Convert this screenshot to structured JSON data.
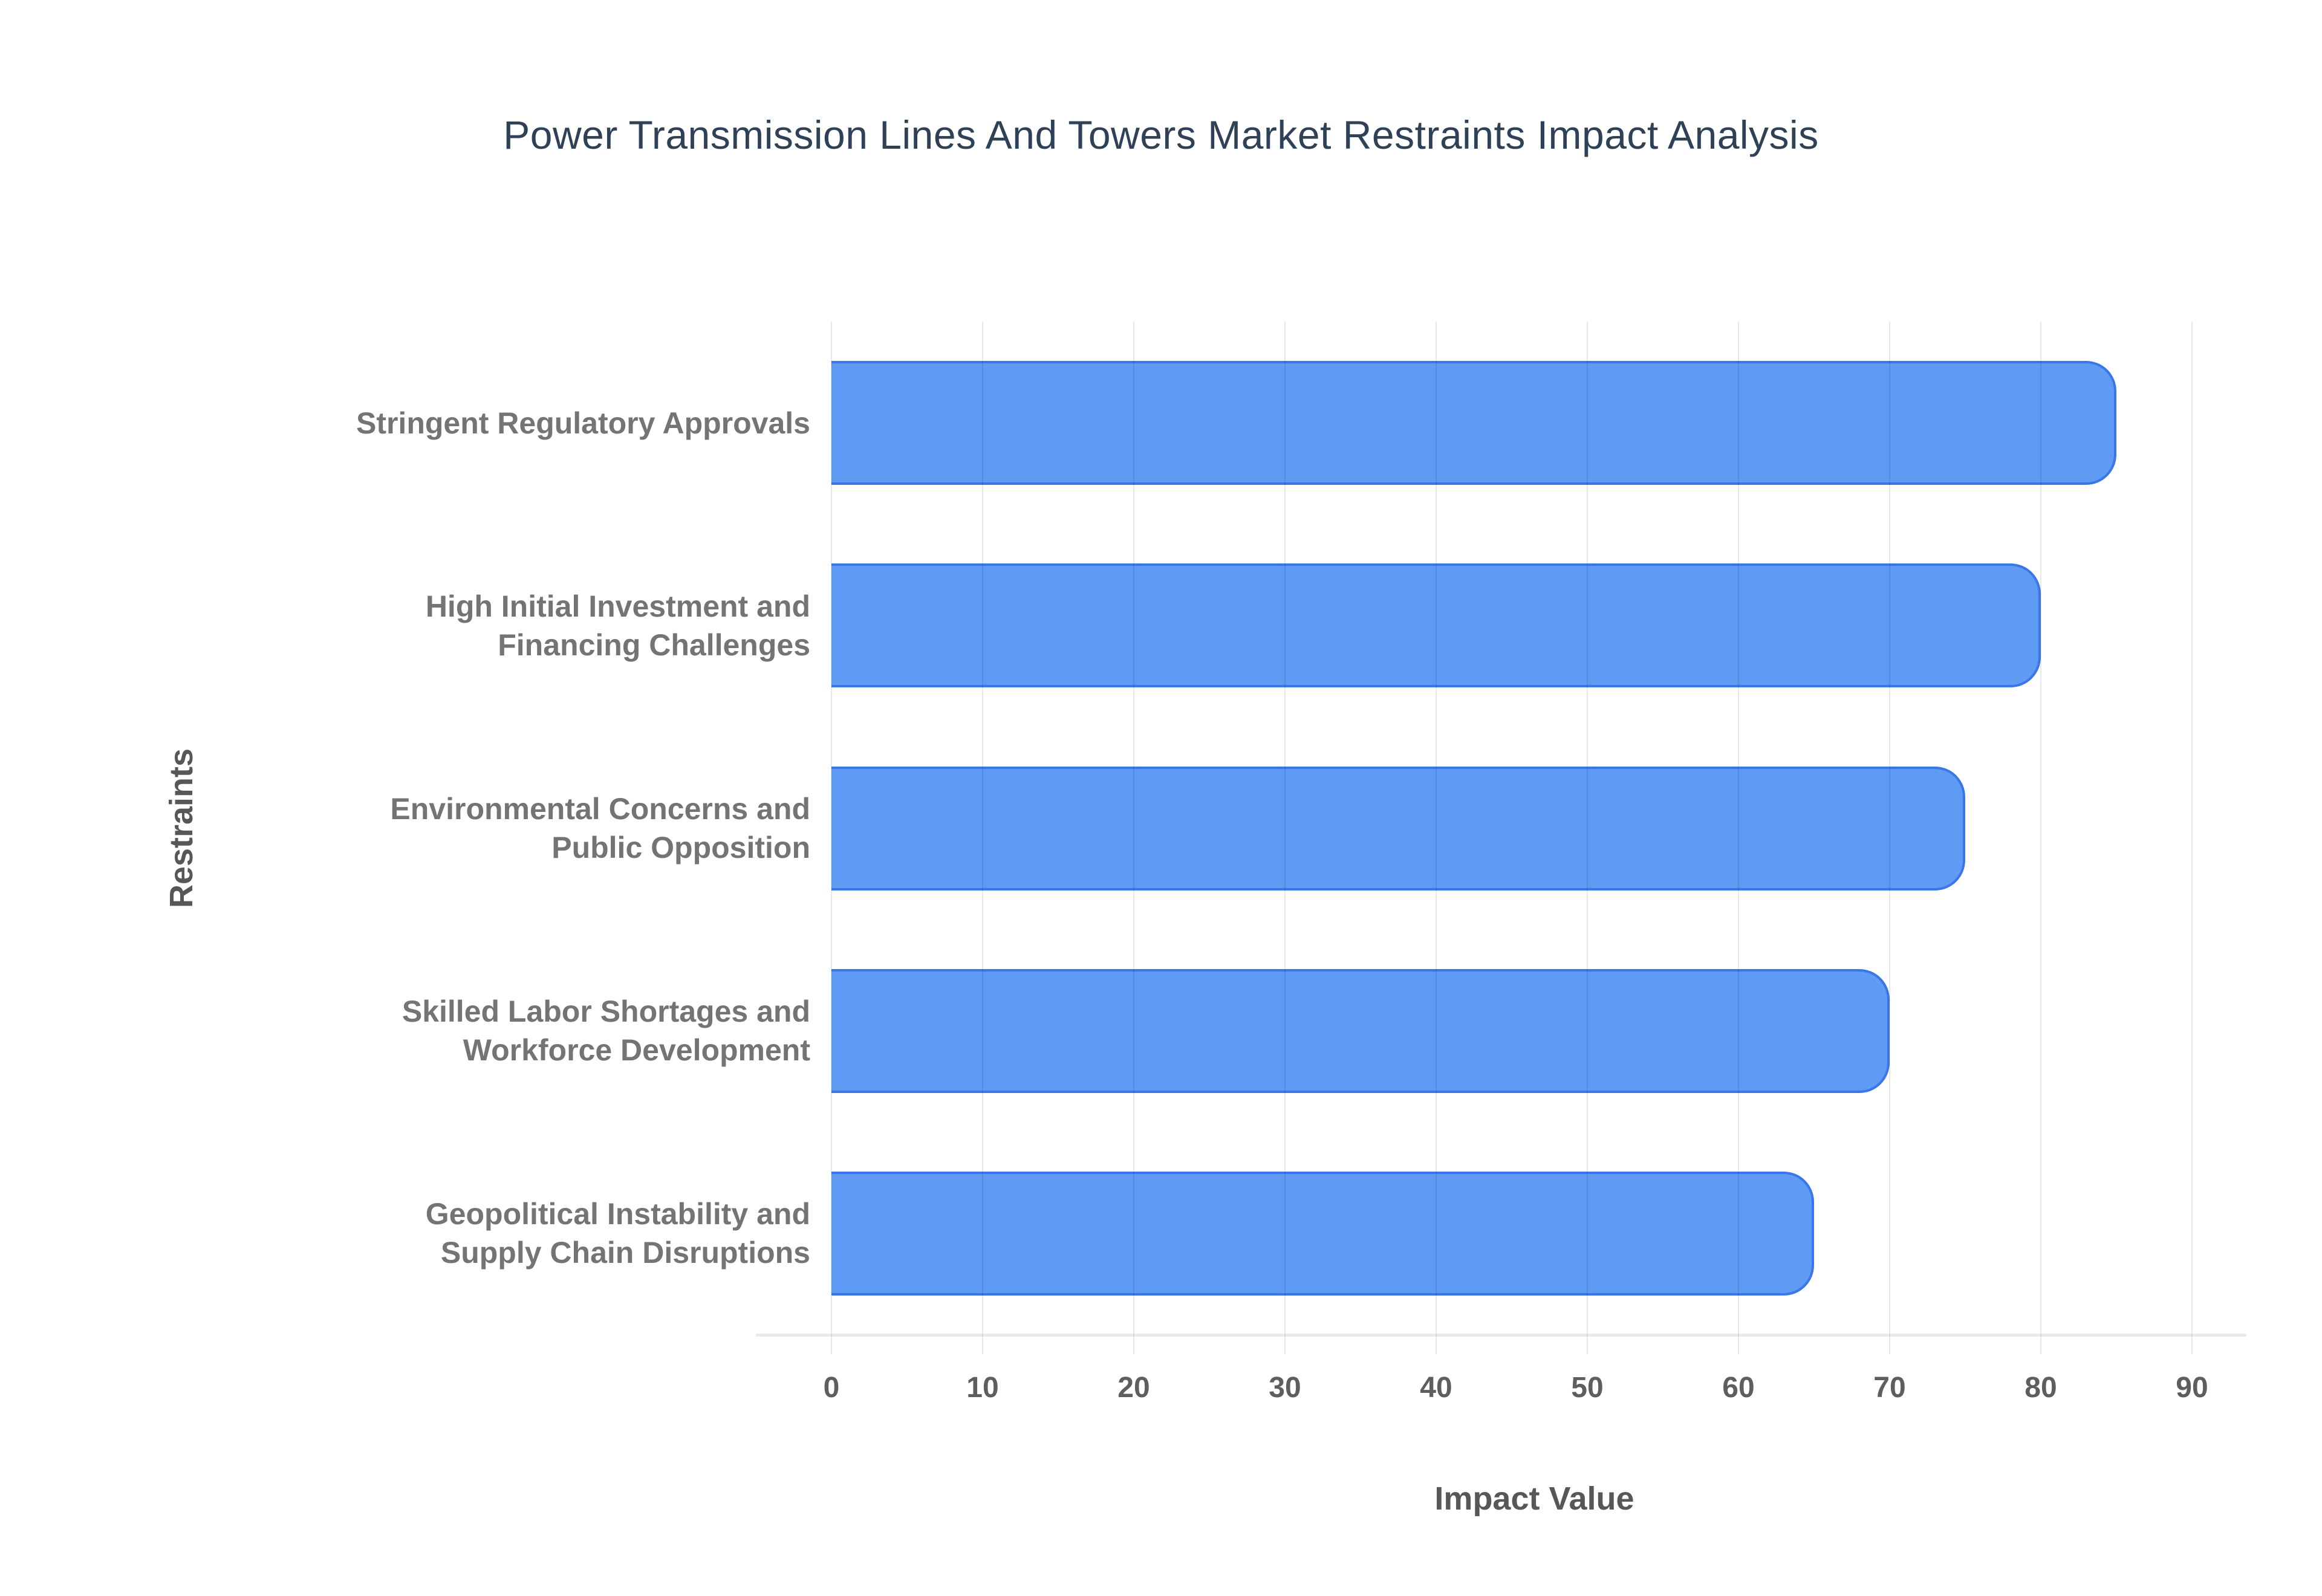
{
  "page": {
    "background": "#ffffff"
  },
  "chart_data": {
    "type": "bar",
    "orientation": "horizontal",
    "title": "Power Transmission Lines And Towers Market Restraints Impact Analysis",
    "xlabel": "Impact Value",
    "ylabel": "Restraints",
    "categories": [
      "Stringent Regulatory Approvals",
      "High Initial Investment and\nFinancing Challenges",
      "Environmental Concerns and\nPublic Opposition",
      "Skilled Labor Shortages and\nWorkforce Development",
      "Geopolitical Instability and\nSupply Chain Disruptions"
    ],
    "values": [
      85,
      80,
      75,
      70,
      65
    ],
    "xticks": [
      0,
      10,
      20,
      30,
      40,
      50,
      60,
      70,
      80,
      90
    ],
    "xlim": [
      0,
      93
    ],
    "grid": true,
    "legend_position": "none",
    "colors": {
      "bar_fill": "#5f9af5",
      "bar_border": "#3b76e8",
      "grid_line": "rgba(0,0,0,0.09)",
      "axis_line": "#ebebeb",
      "title": "#2e4156",
      "category_label": "#747474",
      "tick_label": "#5e5e5e",
      "axis_title": "#575757"
    }
  }
}
